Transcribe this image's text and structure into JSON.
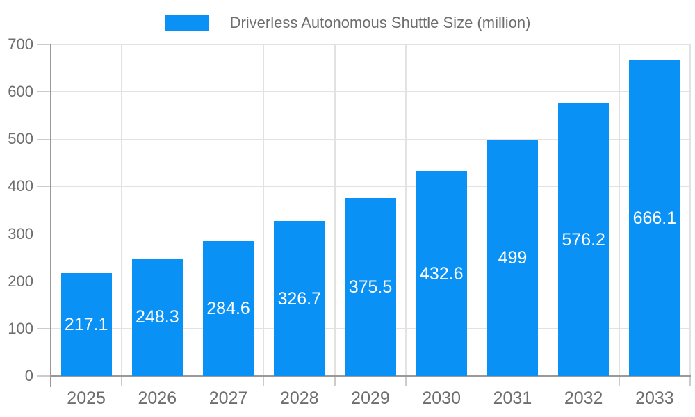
{
  "chart_data": {
    "type": "bar",
    "title": "Driverless Autonomous Shuttle Size (million)",
    "categories": [
      "2025",
      "2026",
      "2027",
      "2028",
      "2029",
      "2030",
      "2031",
      "2032",
      "2033"
    ],
    "values": [
      217.1,
      248.3,
      284.6,
      326.7,
      375.5,
      432.6,
      499,
      576.2,
      666.1
    ],
    "series_name": "Driverless Autonomous Shuttle Size (million)",
    "xlabel": "",
    "ylabel": "",
    "ylim": [
      0,
      700
    ],
    "y_ticks": [
      0,
      100,
      200,
      300,
      400,
      500,
      600,
      700
    ],
    "grid": "both",
    "legend_position": "top-center",
    "value_label_position": "inside-center",
    "colors": {
      "bar": "#0a91f5",
      "gridline": "#e2e2e2",
      "axis_line": "#999999",
      "tick": "#cccccc",
      "axis_label": "#6e6e6e",
      "value_label": "#ffffff",
      "background": "#ffffff"
    }
  }
}
